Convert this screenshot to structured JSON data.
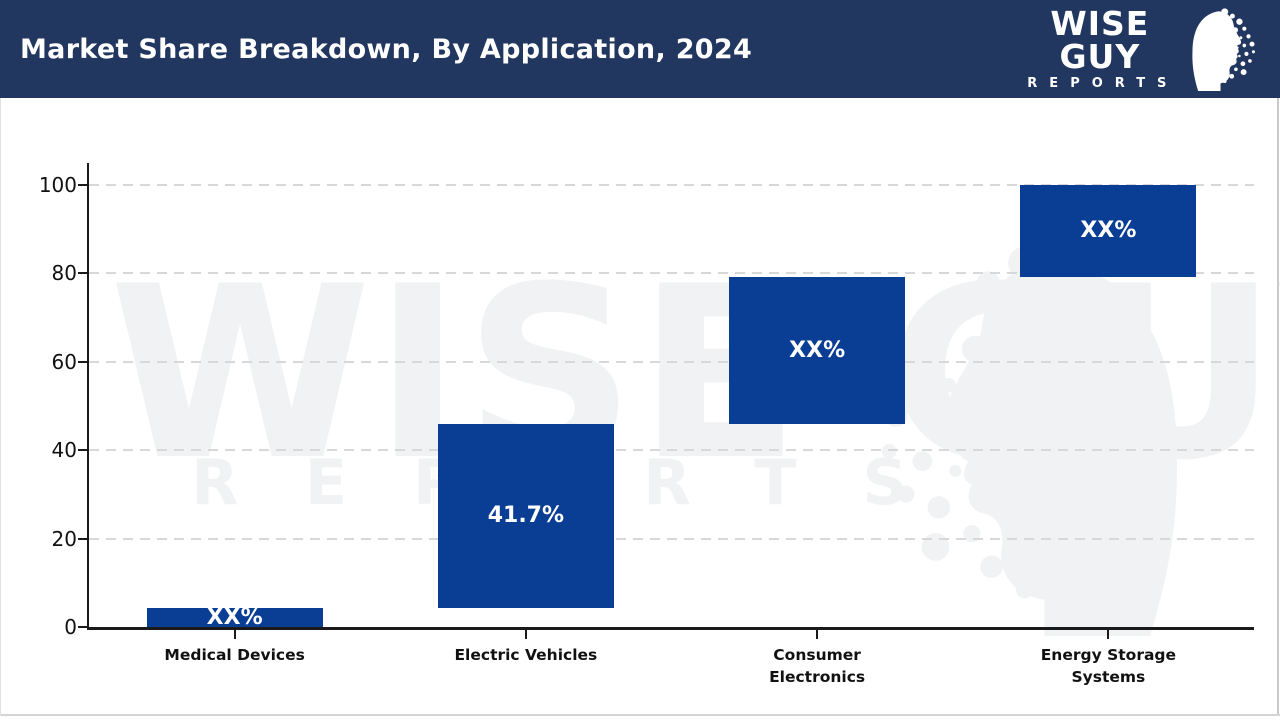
{
  "header": {
    "title": "Market Share Breakdown, By Application, 2024",
    "logo_line1": "WISE GUY",
    "logo_line2": "REPORTS"
  },
  "watermark": {
    "line1": "WISE GUY",
    "line2": "REPORTS"
  },
  "chart_data": {
    "type": "bar",
    "subtype": "floating-waterfall",
    "title": "Market Share Breakdown, By Application, 2024",
    "categories": [
      "Medical Devices",
      "Electric Vehicles",
      "Consumer Electronics",
      "Energy Storage Systems"
    ],
    "tick_labels": [
      "Medical Devices",
      "Electric Vehicles",
      "Consumer\nElectronics",
      "Energy Storage\nSystems"
    ],
    "bars": [
      {
        "category": "Medical Devices",
        "start": 0,
        "end": 4.3,
        "label": "XX%"
      },
      {
        "category": "Electric Vehicles",
        "start": 4.3,
        "end": 46.0,
        "label": "41.7%"
      },
      {
        "category": "Consumer Electronics",
        "start": 46.0,
        "end": 79.3,
        "label": "XX%"
      },
      {
        "category": "Energy Storage Systems",
        "start": 79.3,
        "end": 100.0,
        "label": "XX%"
      }
    ],
    "xlabel": "",
    "ylabel": "",
    "yticks": [
      0,
      20,
      40,
      60,
      80,
      100
    ],
    "ylim": [
      0,
      105
    ],
    "grid": "horizontal-dashed",
    "legend": "none",
    "bar_color": "#0a3d94",
    "bar_label_color": "#ffffff"
  },
  "colors": {
    "header_bg": "#213760",
    "axis": "#1a1a1a",
    "gridline": "#d8d8d8",
    "watermark": "#f1f2f4",
    "card_border": "#cacaca"
  }
}
